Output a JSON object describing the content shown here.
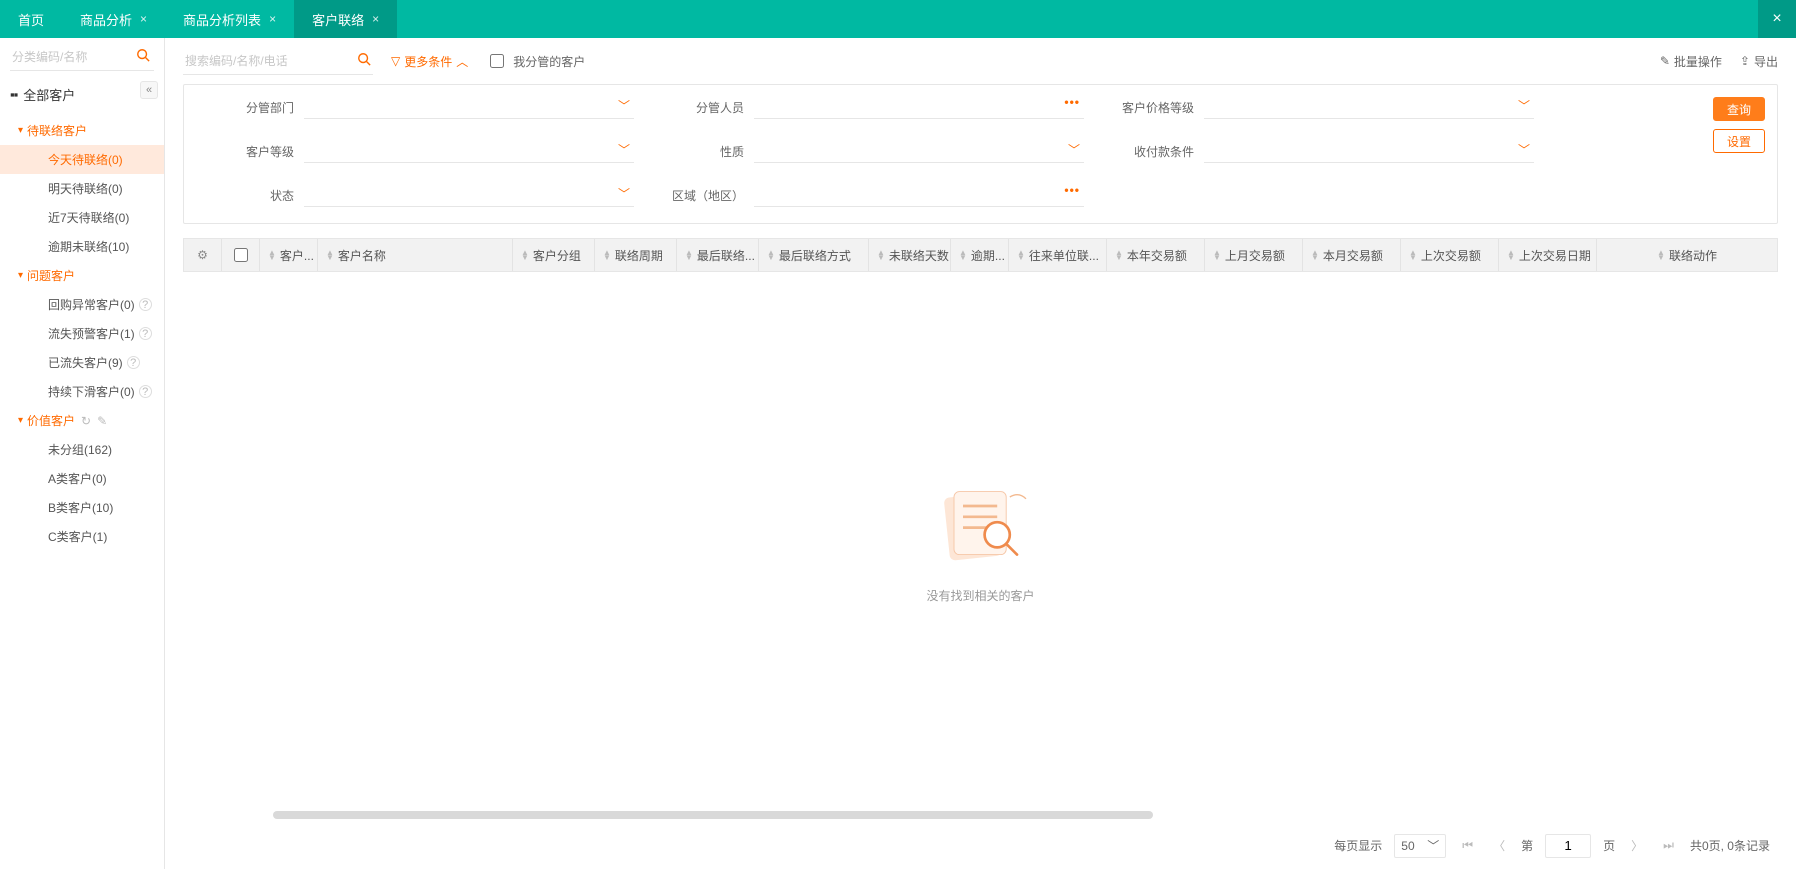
{
  "colors": {
    "teal": "#00b9a2",
    "teal_dark": "#009a87",
    "orange": "#ff6a00",
    "border": "#e6e6e6",
    "sidebar_active_bg": "#ffe9dc"
  },
  "tabs": {
    "items": [
      {
        "label": "首页",
        "closable": false,
        "active": false
      },
      {
        "label": "商品分析",
        "closable": true,
        "active": false
      },
      {
        "label": "商品分析列表",
        "closable": true,
        "active": false
      },
      {
        "label": "客户联络",
        "closable": true,
        "active": true
      }
    ]
  },
  "sidebar": {
    "search_placeholder": "分类编码/名称",
    "header": "全部客户",
    "groups": [
      {
        "title": "待联络客户",
        "items": [
          {
            "label": "今天待联络(0)",
            "active": true
          },
          {
            "label": "明天待联络(0)"
          },
          {
            "label": "近7天待联络(0)"
          },
          {
            "label": "逾期未联络(10)"
          }
        ]
      },
      {
        "title": "问题客户",
        "items": [
          {
            "label": "回购异常客户(0)",
            "help": true
          },
          {
            "label": "流失预警客户(1)",
            "help": true
          },
          {
            "label": "已流失客户(9)",
            "help": true
          },
          {
            "label": "持续下滑客户(0)",
            "help": true
          }
        ]
      },
      {
        "title": "价值客户",
        "extra_icons": true,
        "items": [
          {
            "label": "未分组(162)"
          },
          {
            "label": "A类客户(0)"
          },
          {
            "label": "B类客户(10)"
          },
          {
            "label": "C类客户(1)"
          }
        ]
      }
    ]
  },
  "toolbar": {
    "search_placeholder": "搜索编码/名称/电话",
    "more_conditions": "更多条件",
    "my_customers": "我分管的客户",
    "batch": "批量操作",
    "export": "导出"
  },
  "filters": {
    "rows": [
      [
        {
          "label": "分管部门",
          "suffix": "chev"
        },
        {
          "label": "分管人员",
          "suffix": "dots"
        },
        {
          "label": "客户价格等级",
          "suffix": "chev"
        }
      ],
      [
        {
          "label": "客户等级",
          "suffix": "chev"
        },
        {
          "label": "性质",
          "suffix": "chev"
        },
        {
          "label": "收付款条件",
          "suffix": "chev"
        }
      ],
      [
        {
          "label": "状态",
          "suffix": "chev"
        },
        {
          "label": "区域（地区）",
          "suffix": "dots"
        },
        null
      ]
    ],
    "query": "查询",
    "reset": "设置"
  },
  "table": {
    "columns": [
      {
        "key": "code",
        "label": "客户...",
        "cls": "c-code"
      },
      {
        "key": "name",
        "label": "客户名称",
        "cls": "c-name"
      },
      {
        "key": "group",
        "label": "客户分组",
        "cls": "c-group"
      },
      {
        "key": "cycle",
        "label": "联络周期",
        "cls": "c-cycle"
      },
      {
        "key": "lastdate",
        "label": "最后联络...",
        "cls": "c-lastdate"
      },
      {
        "key": "lastway",
        "label": "最后联络方式",
        "cls": "c-lastway"
      },
      {
        "key": "nocontact",
        "label": "未联络天数",
        "cls": "c-nocontact"
      },
      {
        "key": "overdue",
        "label": "逾期...",
        "cls": "c-overdue"
      },
      {
        "key": "units",
        "label": "往来单位联...",
        "cls": "c-units"
      },
      {
        "key": "year",
        "label": "本年交易额",
        "cls": "c-year"
      },
      {
        "key": "prev",
        "label": "上月交易额",
        "cls": "c-prev"
      },
      {
        "key": "month",
        "label": "本月交易额",
        "cls": "c-month"
      },
      {
        "key": "lastamt",
        "label": "上次交易额",
        "cls": "c-lastamt"
      },
      {
        "key": "lasttrade",
        "label": "上次交易日期",
        "cls": "c-lasttrade"
      },
      {
        "key": "action",
        "label": "联络动作",
        "cls": "c-action"
      }
    ],
    "empty_text": "没有找到相关的客户"
  },
  "pager": {
    "per_page_label": "每页显示",
    "per_page_value": "50",
    "page_prefix": "第",
    "page_value": "1",
    "page_suffix": "页",
    "summary": "共0页, 0条记录"
  }
}
